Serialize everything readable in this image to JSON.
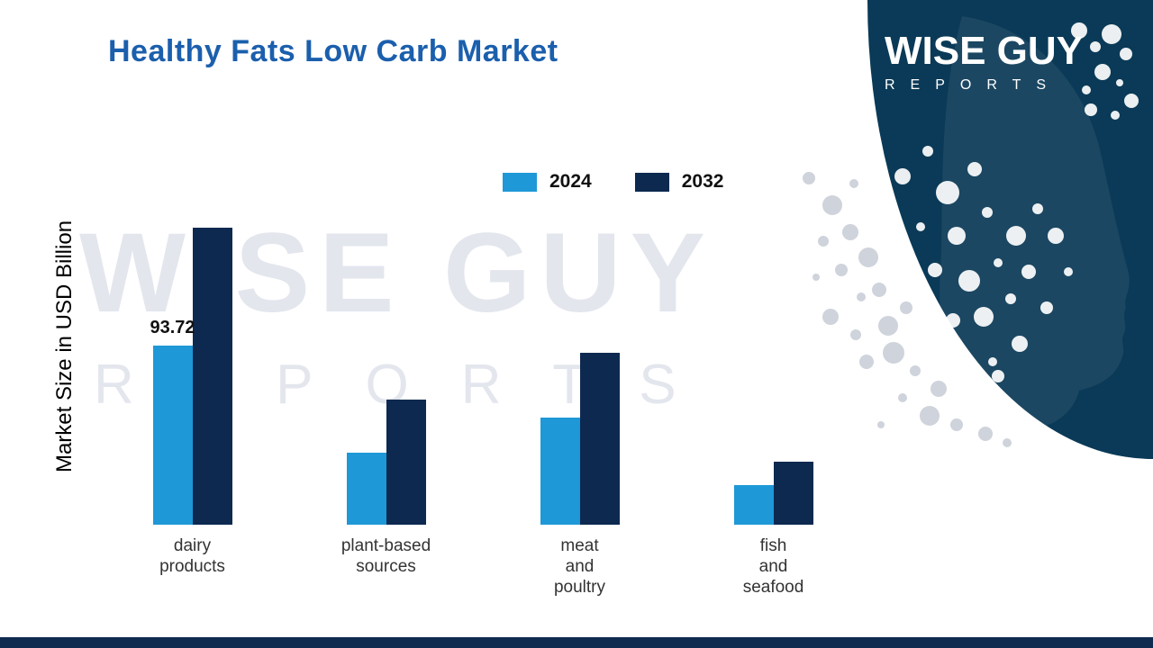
{
  "page": {
    "title": "Healthy Fats Low Carb Market"
  },
  "brand": {
    "name": "WISE GUY",
    "subtitle": "REPORTS"
  },
  "watermark": {
    "line1": "WISE GUY",
    "line2": "REPORTS"
  },
  "colors": {
    "title": "#1b5fad",
    "corner_bg": "#0a3a57",
    "footer_bg": "#0f2b50",
    "watermark": "#e3e6ed",
    "series_2024": "#1e98d7",
    "series_2032": "#0d2950"
  },
  "chart_data": {
    "type": "bar",
    "title": "Healthy Fats Low Carb Market",
    "ylabel": "Market Size in USD Billion",
    "xlabel": "",
    "categories": [
      "dairy products",
      "plant-based sources",
      "meat and poultry",
      "fish and seafood"
    ],
    "series": [
      {
        "name": "2024",
        "color": "#1e98d7",
        "values": [
          93.72,
          37.5,
          56,
          20.5
        ]
      },
      {
        "name": "2032",
        "color": "#0d2950",
        "values": [
          155.5,
          65.5,
          90,
          33
        ]
      }
    ],
    "value_label": {
      "series_index": 0,
      "category_index": 0,
      "text": "93.72"
    },
    "ylim": [
      0,
      160
    ],
    "grid": false,
    "legend_position": "top"
  }
}
